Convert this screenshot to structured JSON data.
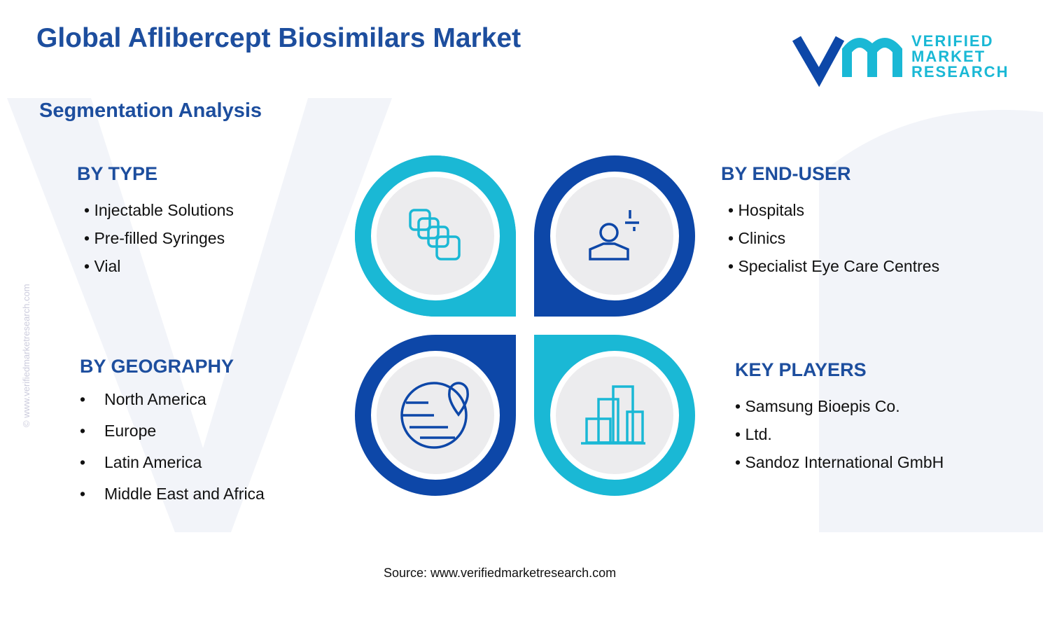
{
  "header": {
    "title": "Global Aflibercept Biosimilars  Market",
    "subtitle": "Segmentation Analysis",
    "logo": {
      "line1": "VERIFIED",
      "line2": "MARKET",
      "line3": "RESEARCH"
    }
  },
  "watermark": "© www.verifiedmarketresearch.com",
  "segments": [
    {
      "title": "BY TYPE",
      "items": [
        "• Injectable Solutions",
        "• Pre-filled Syringes",
        "• Vial"
      ]
    },
    {
      "title": "BY END-USER",
      "items": [
        "• Hospitals",
        "• Clinics",
        "• Specialist Eye Care Centres"
      ]
    },
    {
      "title": "BY GEOGRAPHY",
      "items": [
        "North America",
        "Europe",
        "Latin America",
        "Middle East and Africa"
      ]
    },
    {
      "title": "KEY PLAYERS",
      "items": [
        "• Samsung Bioepis Co.",
        "• Ltd.",
        "• Sandoz International GmbH"
      ]
    }
  ],
  "footer": {
    "source": "Source: www.verifiedmarketresearch.com"
  }
}
